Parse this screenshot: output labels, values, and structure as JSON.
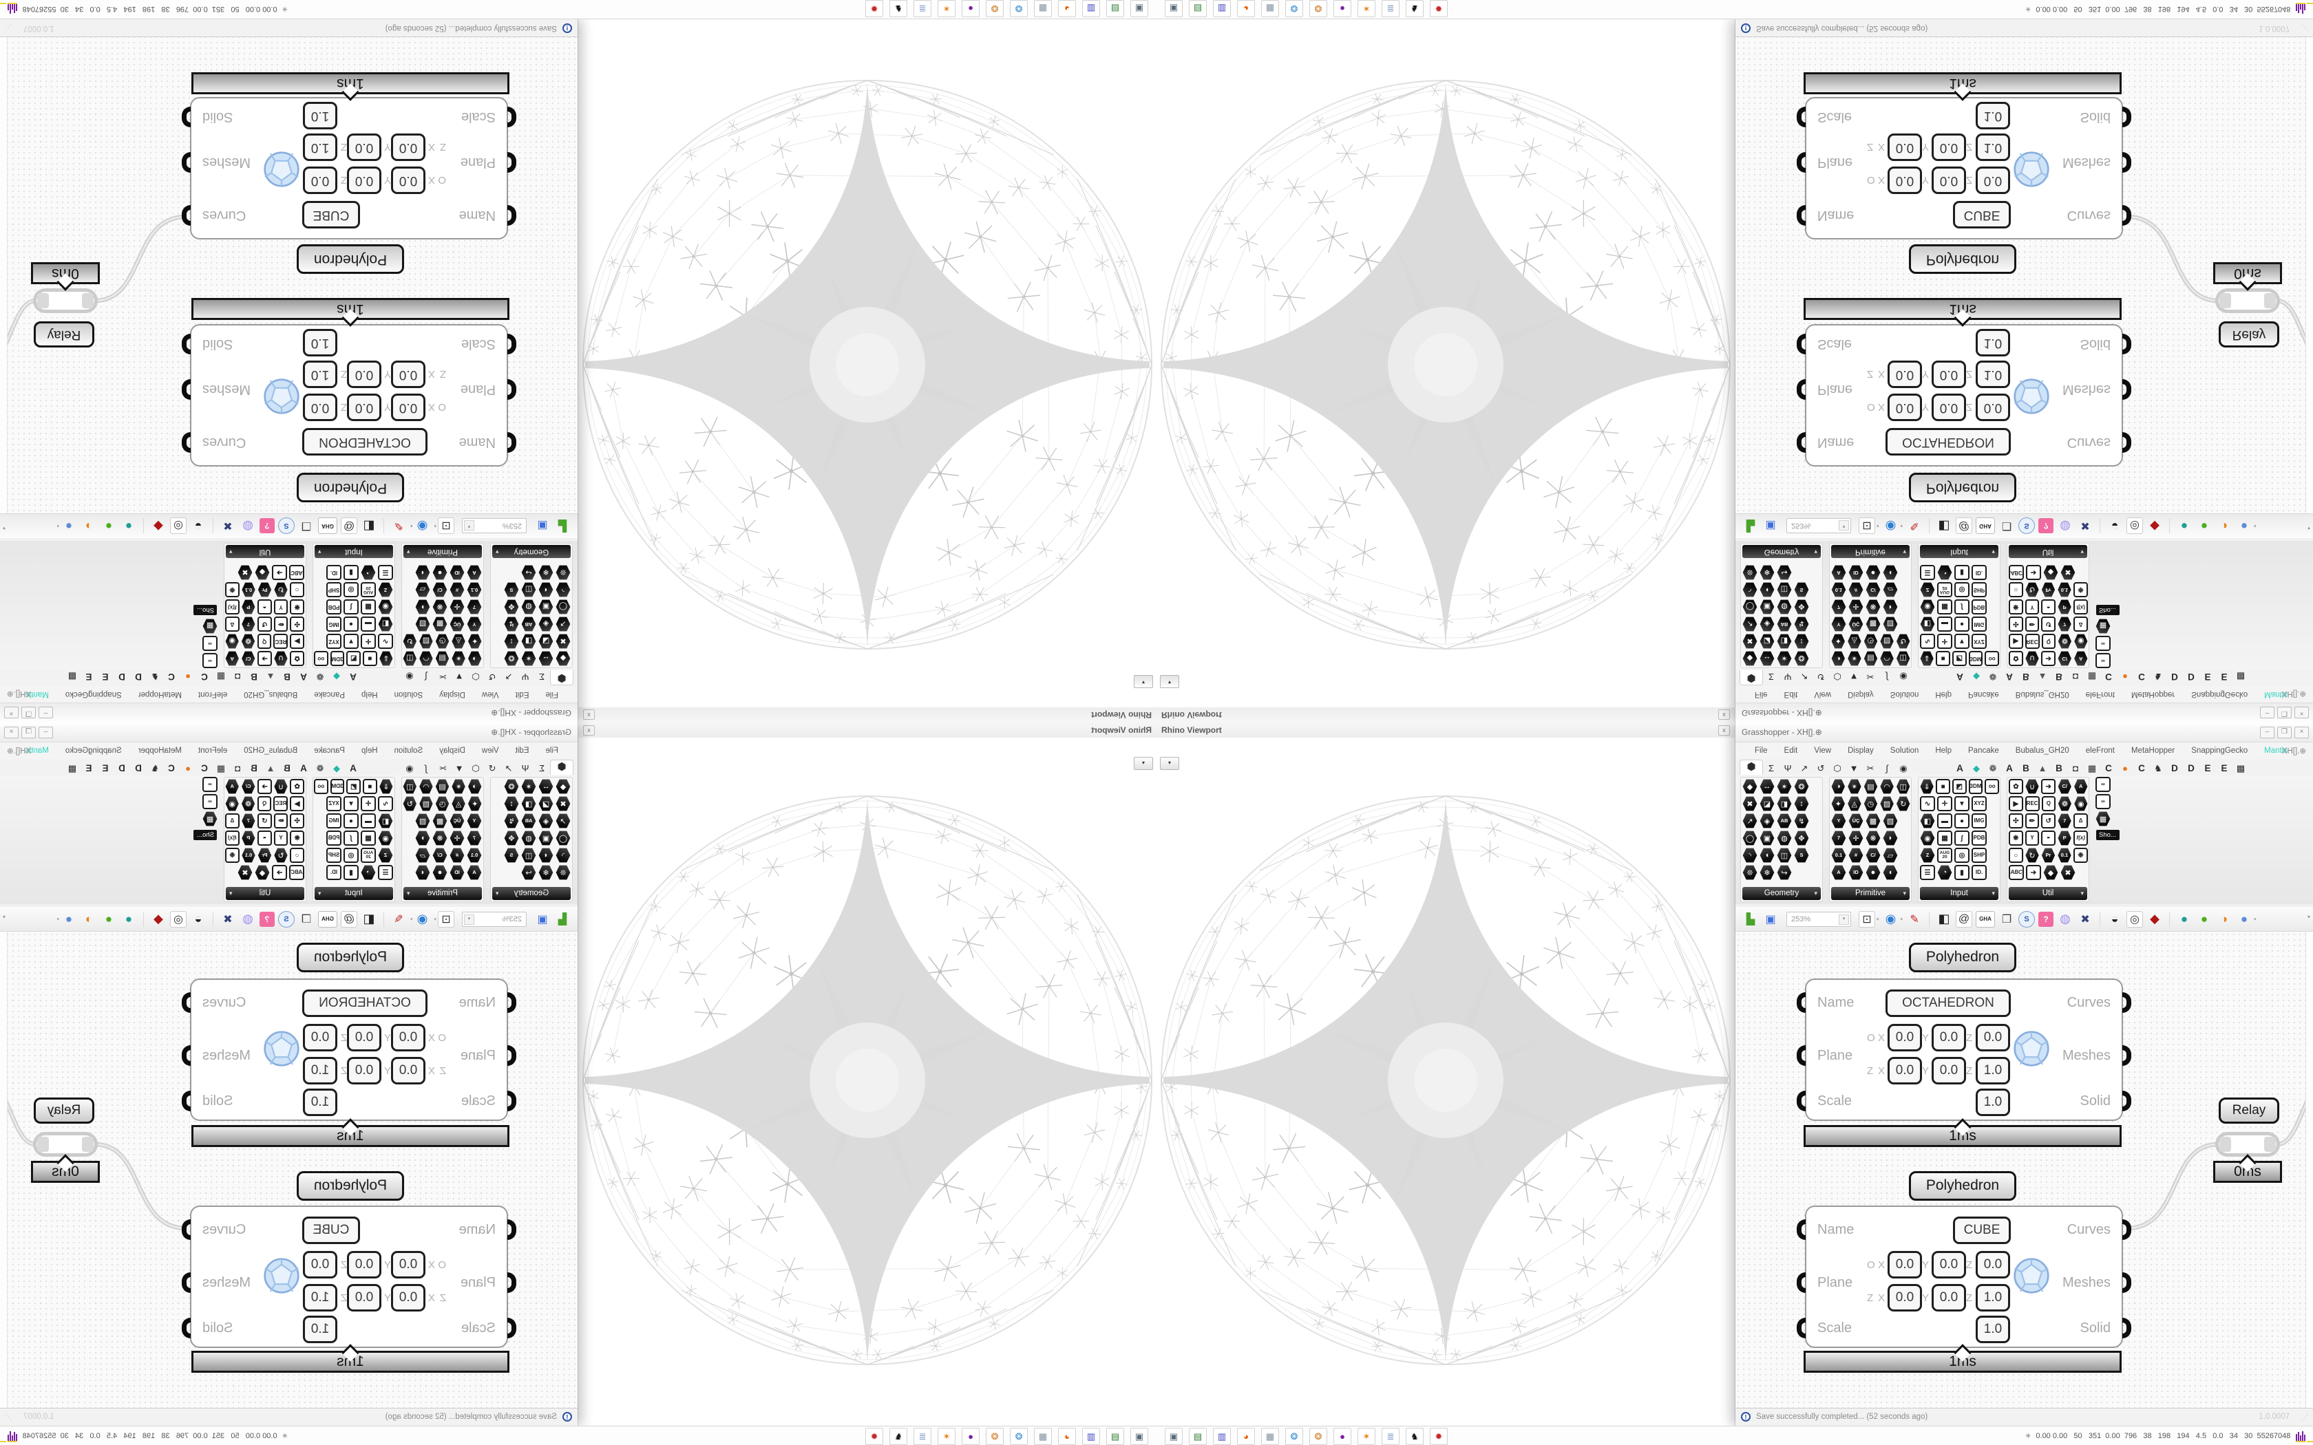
{
  "colors": {
    "mantis_teal": "#2fd6c3",
    "gem_blue": "#cfe3f8",
    "purple_band": "#8a1fb4",
    "wire_gray": "#d0d0d0",
    "bar_gradient_dark": "#989898"
  },
  "viewport": {
    "title": "Rhino Viewport",
    "close_glyph": "x",
    "menu_glyph": "▾"
  },
  "gh": {
    "title": "Grasshopper - XH[].⊕",
    "window_buttons": [
      "–",
      "❒",
      "×"
    ],
    "menu": [
      "File",
      "Edit",
      "View",
      "Display",
      "Solution",
      "Help",
      "Pancake",
      "Bubalus_GH20",
      "eleFront",
      "MetaHopper",
      "SnappingGecko",
      "Mantis"
    ],
    "menu_right": "XH[].⊕",
    "tabs": [
      {
        "g": "⬢",
        "sel": 1,
        "n": "tab-params"
      },
      {
        "g": "Σ",
        "n": "tab-maths"
      },
      {
        "g": "Ψ",
        "n": "tab-sets"
      },
      {
        "g": "↗",
        "n": "tab-vector"
      },
      {
        "g": "↺",
        "n": "tab-curve"
      },
      {
        "g": "⬡",
        "n": "tab-surface"
      },
      {
        "g": "▼",
        "n": "tab-mesh"
      },
      {
        "g": "✂",
        "n": "tab-intersect"
      },
      {
        "g": "∫",
        "n": "tab-transform"
      },
      {
        "g": "◉",
        "n": "tab-display"
      },
      {
        "sp": 1
      },
      {
        "g": "A",
        "b": 1,
        "n": "tab-plugin-a1"
      },
      {
        "g": "◆",
        "col": "#25b8a8",
        "n": "tab-plugin-kite"
      },
      {
        "g": "❁",
        "n": "tab-plugin-knot"
      },
      {
        "g": "A",
        "b": 1,
        "n": "tab-plugin-a2"
      },
      {
        "g": "B",
        "b": 1,
        "n": "tab-plugin-b1"
      },
      {
        "g": "▲",
        "col": "#555",
        "n": "tab-plugin-mountain"
      },
      {
        "g": "B",
        "b": 1,
        "n": "tab-plugin-b2"
      },
      {
        "g": "◘",
        "n": "tab-plugin-shield"
      },
      {
        "g": "▦",
        "n": "tab-plugin-grid"
      },
      {
        "g": "C",
        "b": 1,
        "n": "tab-plugin-c1"
      },
      {
        "g": "●",
        "col": "#e8761e",
        "n": "tab-plugin-orange"
      },
      {
        "g": "C",
        "b": 1,
        "n": "tab-plugin-c2"
      },
      {
        "g": "♞",
        "n": "tab-plugin-bird"
      },
      {
        "g": "D",
        "b": 1,
        "n": "tab-plugin-d1"
      },
      {
        "g": "D",
        "b": 1,
        "n": "tab-plugin-d2"
      },
      {
        "g": "E",
        "b": 1,
        "n": "tab-plugin-e1"
      },
      {
        "g": "E",
        "b": 1,
        "n": "tab-plugin-e2"
      },
      {
        "g": "▩",
        "n": "tab-plugin-dots"
      }
    ],
    "palettes": [
      {
        "name": "Geometry",
        "shape": "h",
        "rows": [
          [
            {
              "g": "◆",
              "n": "geo-cube"
            },
            {
              "g": "↔",
              "n": "geo-link"
            },
            {
              "g": "✶",
              "n": "geo-star"
            },
            {
              "g": "❂",
              "n": "geo-spiral"
            }
          ],
          [
            {
              "g": "✖",
              "n": "geo-x"
            },
            {
              "g": "◪",
              "n": "geo-plane"
            },
            {
              "g": "◨",
              "n": "geo-surface"
            },
            {
              "g": "↕",
              "n": "geo-merge"
            }
          ],
          [
            {
              "g": "↗",
              "n": "geo-arrow"
            },
            {
              "g": "◈",
              "n": "geo-diamond"
            },
            {
              "t": "AB",
              "n": "geo-brep"
            },
            {
              "g": "↯",
              "n": "geo-bolt"
            }
          ],
          [
            {
              "g": "◯",
              "n": "geo-ellipse"
            },
            {
              "g": "▣",
              "n": "geo-box"
            },
            {
              "g": "◍",
              "n": "geo-q"
            },
            {
              "g": "✥",
              "n": "geo-scatter"
            }
          ],
          [
            {
              "g": "◝",
              "n": "geo-arc"
            },
            {
              "g": "◖",
              "n": "geo-cylinder"
            },
            {
              "g": "◫",
              "n": "geo-region"
            },
            {
              "t": "S",
              "n": "geo-s"
            }
          ],
          [
            {
              "g": "❊",
              "n": "geo-disc"
            },
            {
              "g": "❄",
              "n": "geo-snow"
            },
            {
              "g": "↪",
              "n": "geo-magnet"
            }
          ]
        ]
      },
      {
        "name": "Primitive",
        "shape": "h",
        "rows": [
          [
            {
              "g": "◑",
              "n": "prim-half"
            },
            {
              "g": "✴",
              "n": "prim-burst"
            },
            {
              "g": "▤",
              "n": "prim-braille"
            },
            {
              "g": "◠",
              "n": "prim-hook"
            },
            {
              "g": "◫",
              "n": "prim-h"
            }
          ],
          [
            {
              "g": "✦",
              "n": "prim-pin"
            },
            {
              "g": "◬",
              "n": "prim-comet"
            },
            {
              "g": "◷",
              "n": "prim-clock"
            },
            {
              "g": "▨",
              "n": "prim-image"
            },
            {
              "g": "↻",
              "n": "prim-gear"
            }
          ],
          [
            {
              "t": "Y",
              "n": "prim-y"
            },
            {
              "t": "ÜÇ",
              "n": "prim-uc"
            },
            {
              "g": "▩",
              "n": "prim-checker"
            },
            {
              "g": "▧",
              "n": "prim-filegear"
            }
          ],
          [
            {
              "t": "7",
              "n": "prim-7"
            },
            {
              "g": "✛",
              "n": "prim-plus"
            },
            {
              "g": "❋",
              "n": "prim-tree"
            },
            {
              "g": "◗",
              "n": "prim-swoosh"
            }
          ],
          [
            {
              "t": "0.1",
              "n": "prim-01"
            },
            {
              "t": "#",
              "n": "prim-hash"
            },
            {
              "t": "C/",
              "n": "prim-cslash"
            },
            {
              "g": "▱",
              "n": "prim-pdf"
            }
          ],
          [
            {
              "t": "A",
              "n": "prim-a"
            },
            {
              "t": "ID",
              "n": "prim-id"
            },
            {
              "g": "●",
              "n": "prim-sphere"
            },
            {
              "g": "◖",
              "n": "prim-dark-swoosh"
            }
          ]
        ]
      },
      {
        "name": "Input",
        "shape": "q",
        "rows": [
          [
            {
              "g": "⇓",
              "s": "h",
              "n": "in-import"
            },
            {
              "g": "■",
              "n": "in-square"
            },
            {
              "g": "◩",
              "c": "c-mesh",
              "n": "in-mesh"
            },
            {
              "t": "3DM",
              "n": "in-3dm"
            },
            {
              "t": "oo",
              "n": "in-eyes"
            }
          ],
          [
            {
              "g": "∿",
              "c": "c-yel",
              "n": "in-scribble"
            },
            {
              "g": "✛",
              "c": "c-axes",
              "n": "in-axes"
            },
            {
              "g": "▼",
              "c": "c-org",
              "n": "in-honey"
            },
            {
              "t": "XYZ",
              "n": "in-xyz"
            }
          ],
          [
            {
              "g": "◧",
              "s": "h",
              "n": "in-toggle"
            },
            {
              "g": "▬",
              "c": "c-pnk",
              "n": "in-gradient"
            },
            {
              "g": "●",
              "c": "c-whl",
              "n": "in-colorwheel"
            },
            {
              "t": "IMG",
              "n": "in-img"
            }
          ],
          [
            {
              "g": "◉",
              "s": "h",
              "n": "in-sphere"
            },
            {
              "g": "▦",
              "c": "c-grn",
              "n": "in-pixels"
            },
            {
              "g": "∫",
              "n": "in-graph"
            },
            {
              "t": "PDB",
              "n": "in-pdb"
            }
          ],
          [
            {
              "t": "Z",
              "s": "h",
              "n": "in-z"
            },
            {
              "t": "AUG\n20",
              "c": "c-cal",
              "n": "in-calendar"
            },
            {
              "g": "◎",
              "n": "in-target"
            },
            {
              "t": "SHP",
              "n": "in-shp"
            }
          ],
          [
            {
              "g": "☰",
              "n": "in-list"
            },
            {
              "g": "◔",
              "s": "h",
              "n": "in-clock"
            },
            {
              "g": "▮",
              "c": "c-bars",
              "n": "in-bars"
            },
            {
              "t": "ID.",
              "c": "c-tag",
              "n": "in-idtag"
            }
          ]
        ]
      },
      {
        "name": "Util",
        "shape": "q",
        "rows": [
          [
            {
              "g": "✿",
              "c": "c-red",
              "n": "ut-cherry"
            },
            {
              "g": "∪",
              "s": "h",
              "n": "ut-magnet"
            },
            {
              "g": "➔",
              "c": "c-gray",
              "n": "ut-arrow"
            },
            {
              "t": "C/",
              "s": "h",
              "c": "c-band",
              "n": "ut-cslash"
            },
            {
              "t": "A",
              "s": "h",
              "c": "c-band",
              "n": "ut-a"
            }
          ],
          [
            {
              "g": "▶",
              "c": "c-red",
              "n": "ut-play"
            },
            {
              "t": "REC",
              "c": "c-rec",
              "n": "ut-rec"
            },
            {
              "t": "Q",
              "n": "ut-find"
            },
            {
              "g": "❁",
              "s": "h",
              "c": "c-band",
              "n": "ut-spiral"
            },
            {
              "g": "◉",
              "s": "h",
              "n": "ut-eye"
            }
          ],
          [
            {
              "g": "✣",
              "c": "c-axes",
              "n": "ut-triangle"
            },
            {
              "g": "✏",
              "n": "ut-pencil"
            },
            {
              "g": "↺",
              "n": "ut-undo"
            },
            {
              "t": "7",
              "s": "h",
              "c": "c-band",
              "n": "ut-7"
            },
            {
              "t": "Δ",
              "c": "c-pnk",
              "n": "ut-flask"
            }
          ],
          [
            {
              "g": "❋",
              "c": "c-gray",
              "n": "ut-tree"
            },
            {
              "t": "Y",
              "c": "c-blu",
              "n": "ut-zip"
            },
            {
              "g": "◓",
              "c": "c-yel",
              "n": "ut-egg"
            },
            {
              "t": "P",
              "s": "h",
              "c": "c-band",
              "n": "ut-key"
            },
            {
              "t": "f(x)",
              "c": "c-ital",
              "n": "ut-fx"
            }
          ],
          [
            {
              "g": "○",
              "n": "ut-circle"
            },
            {
              "g": "↻",
              "s": "h",
              "n": "ut-spin"
            },
            {
              "t": "Pr",
              "s": "h",
              "c": "c-band",
              "n": "ut-pr"
            },
            {
              "t": "0.1",
              "s": "h",
              "c": "c-band",
              "n": "ut-01"
            },
            {
              "g": "❉",
              "c": "c-whl",
              "n": "ut-palette"
            }
          ],
          [
            {
              "t": "ABC",
              "c": "c-ital",
              "n": "ut-abc"
            },
            {
              "g": "➔",
              "c": "c-gray",
              "n": "ut-step"
            },
            {
              "g": "◆",
              "s": "h",
              "c": "c-band",
              "n": "ut-gem"
            },
            {
              "g": "✖",
              "s": "h",
              "c": "c-band",
              "n": "ut-x"
            }
          ]
        ]
      }
    ],
    "mini_palette": {
      "label": "Sho...",
      "icons": [
        {
          "t": "∞",
          "n": "show-specs1"
        },
        {
          "t": "∞",
          "n": "show-specs2"
        },
        {
          "g": "▦",
          "s": "h",
          "n": "show-board"
        }
      ]
    },
    "toolbar": {
      "zoom_level": "253%",
      "items": [
        {
          "g": "▙",
          "c": "t-grn",
          "n": "open-file-icon"
        },
        {
          "g": "▣",
          "c": "t-sav",
          "n": "save-file-icon"
        },
        {
          "zoom": 1
        },
        {
          "g": "⊡",
          "c": "t-pln",
          "car": 1,
          "n": "zoom-extents-icon"
        },
        {
          "g": "◉",
          "c": "t-eye",
          "car": 1,
          "n": "preview-eye-icon"
        },
        {
          "g": "✎",
          "c": "t-pen",
          "n": "sketch-pen-icon"
        },
        {
          "sep": 1
        },
        {
          "g": "◧",
          "c": "t-drk",
          "n": "bake-icon"
        },
        {
          "g": "@",
          "c": "t-pln",
          "n": "remote-panel-icon"
        },
        {
          "t": "GHA",
          "c": "t-gha",
          "n": "gha-assembly-icon"
        },
        {
          "g": "❐",
          "c": "t-win",
          "n": "window-layout-icon"
        },
        {
          "t": "S",
          "c": "t-srch",
          "n": "search-icon"
        },
        {
          "t": "?",
          "c": "t-pkg",
          "n": "package-icon"
        },
        {
          "g": "◍",
          "c": "t-bal",
          "n": "balloon-icon"
        },
        {
          "g": "✖",
          "c": "t-x",
          "n": "cross-wires-icon"
        },
        {
          "sep": 1
        },
        {
          "g": "◒",
          "c": "t-drk",
          "n": "camera-icon"
        },
        {
          "g": "◎",
          "c": "t-pln",
          "n": "rings-icon"
        },
        {
          "g": "◆",
          "c": "t-gem",
          "n": "ruby-gem-icon"
        },
        {
          "sep": 1
        },
        {
          "g": "●",
          "c": "t-teal",
          "n": "pin-teal-icon"
        },
        {
          "g": "●",
          "c": "t-green",
          "n": "pin-green-icon"
        },
        {
          "g": "◑",
          "c": "t-orng",
          "n": "pin-orange-icon"
        },
        {
          "g": "●",
          "c": "t-blue",
          "car": 1,
          "n": "pin-blue-icon"
        }
      ]
    },
    "components": [
      {
        "title": "Polyhedron",
        "name_value": "OCTAHEDRON",
        "inputs": [
          "Name",
          "Plane",
          "Scale"
        ],
        "outputs": [
          "Curves",
          "Meshes",
          "Solid"
        ],
        "axis_labels": {
          "x": "X",
          "y": "Y",
          "z": "Z"
        },
        "plane": [
          {
            "axis": "O",
            "x": "0.0",
            "y": "0.0",
            "z": "0.0"
          },
          {
            "axis": "Z",
            "x": "0.0",
            "y": "0.0",
            "z": "1.0"
          }
        ],
        "scale_value": "1.0",
        "time": "1ms"
      },
      {
        "title": "Polyhedron",
        "name_value": "CUBE",
        "inputs": [
          "Name",
          "Plane",
          "Scale"
        ],
        "outputs": [
          "Curves",
          "Meshes",
          "Solid"
        ],
        "axis_labels": {
          "x": "X",
          "y": "Y",
          "z": "Z"
        },
        "plane": [
          {
            "axis": "O",
            "x": "0.0",
            "y": "0.0",
            "z": "0.0"
          },
          {
            "axis": "Z",
            "x": "0.0",
            "y": "0.0",
            "z": "1.0"
          }
        ],
        "scale_value": "1.0",
        "time": "1ms"
      }
    ],
    "relay": {
      "label": "Relay",
      "time": "0ms"
    },
    "status": {
      "message": "Save successfully completed... (52 seconds ago)",
      "version": "1.0.0007"
    }
  },
  "taskbar": {
    "stats_glyph": "✳",
    "stats": "0.00 0.00   50   351  0.00  796   38   198   194   4.5   0.0   34   30  55267048",
    "apps": [
      {
        "g": "▣",
        "col": "#5a6b7a",
        "n": "app-monitor"
      },
      {
        "g": "▤",
        "col": "#2e7d32",
        "n": "app-drive"
      },
      {
        "g": "▥",
        "col": "#4040c0",
        "n": "app-floppy64"
      },
      {
        "g": "◕",
        "col": "#e66000",
        "n": "app-firefox"
      },
      {
        "g": "▦",
        "col": "#8090a0",
        "n": "app-calculator"
      },
      {
        "g": "❂",
        "col": "#4090d0",
        "n": "app-paint1"
      },
      {
        "g": "❂",
        "col": "#d08030",
        "n": "app-paint2"
      },
      {
        "g": "●",
        "col": "#7b1fa2",
        "n": "app-owl"
      },
      {
        "g": "✶",
        "col": "#e87d0d",
        "n": "app-blender"
      },
      {
        "g": "≣",
        "col": "#7090c0",
        "n": "app-docs"
      },
      {
        "g": "♞",
        "col": "#111111",
        "n": "app-game"
      },
      {
        "g": "✹",
        "col": "#c62828",
        "n": "app-settings"
      }
    ]
  }
}
